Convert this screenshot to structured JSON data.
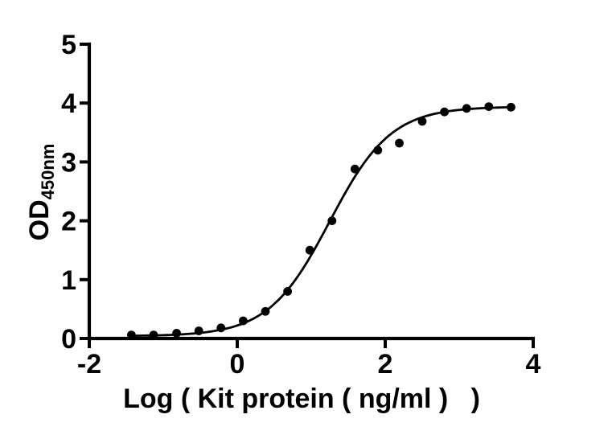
{
  "figure": {
    "background": "#ffffff",
    "ink_color": "#000000"
  },
  "chart_data": {
    "type": "scatter",
    "title": "",
    "xlabel": "Log ( Kit protein ( ng/ml )   )",
    "ylabel_main": "OD",
    "ylabel_sub": "450nm",
    "xlim": [
      -2,
      4
    ],
    "ylim": [
      0,
      5
    ],
    "grid": false,
    "legend": "none",
    "x_ticks": [
      {
        "v": -2,
        "label": "-2"
      },
      {
        "v": 0,
        "label": "0"
      },
      {
        "v": 2,
        "label": "2"
      },
      {
        "v": 4,
        "label": "4"
      }
    ],
    "y_ticks": [
      {
        "v": 0,
        "label": "0"
      },
      {
        "v": 1,
        "label": "1"
      },
      {
        "v": 2,
        "label": "2"
      },
      {
        "v": 3,
        "label": "3"
      },
      {
        "v": 4,
        "label": "4"
      },
      {
        "v": 5,
        "label": "5"
      }
    ],
    "series": [
      {
        "name": "OD450nm data points",
        "marker": "filled-circle",
        "color": "#000000",
        "x": [
          -1.43,
          -1.13,
          -0.82,
          -0.52,
          -0.22,
          0.08,
          0.38,
          0.68,
          0.98,
          1.28,
          1.59,
          1.9,
          2.19,
          2.5,
          2.8,
          3.1,
          3.4,
          3.7
        ],
        "y": [
          0.06,
          0.06,
          0.09,
          0.13,
          0.18,
          0.3,
          0.46,
          0.8,
          1.5,
          2.0,
          2.88,
          3.2,
          3.32,
          3.69,
          3.85,
          3.91,
          3.94,
          3.93
        ]
      }
    ],
    "fit_curve": {
      "model": "four-parameter-logistic",
      "bottom": 0.04,
      "top": 3.94,
      "log_ec50": 1.25,
      "hill_slope": 1.05,
      "x_range": [
        -1.43,
        3.7
      ],
      "color": "#000000"
    }
  }
}
